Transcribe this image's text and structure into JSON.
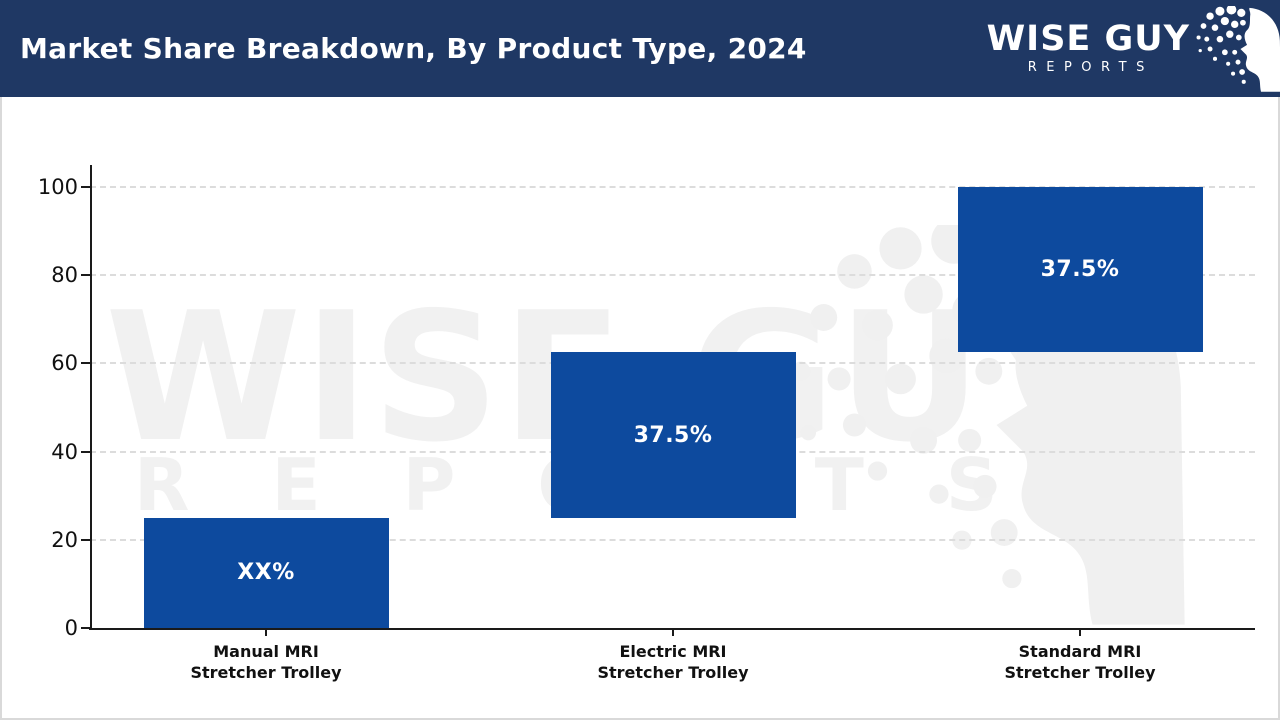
{
  "header": {
    "title": "Market Share Breakdown, By Product Type, 2024",
    "background_color": "#1f3864",
    "logo": {
      "name": "WISE GUY",
      "sub": "REPORTS"
    }
  },
  "watermark": {
    "line1": "WISE GUY",
    "line2": "REPORTS"
  },
  "chart_data": {
    "type": "bar",
    "subtype": "floating-waterfall",
    "title": "Market Share Breakdown, By Product Type, 2024",
    "categories": [
      [
        "Manual MRI",
        "Stretcher Trolley"
      ],
      [
        "Electric MRI",
        "Stretcher Trolley"
      ],
      [
        "Standard MRI",
        "Stretcher Trolley"
      ]
    ],
    "bars": [
      {
        "start": 0,
        "end": 25,
        "label": "XX%"
      },
      {
        "start": 25,
        "end": 62.5,
        "label": "37.5%"
      },
      {
        "start": 62.5,
        "end": 100,
        "label": "37.5%"
      }
    ],
    "yticks": [
      0,
      20,
      40,
      60,
      80,
      100
    ],
    "ylim": [
      0,
      105
    ],
    "xlabel": "",
    "ylabel": "",
    "grid": "horizontal-dashed",
    "legend": "none",
    "bar_color": "#0d4a9e",
    "bar_label_color": "#ffffff",
    "axis_color": "#1a1a1a",
    "gridline_color": "#dcdcdc"
  }
}
